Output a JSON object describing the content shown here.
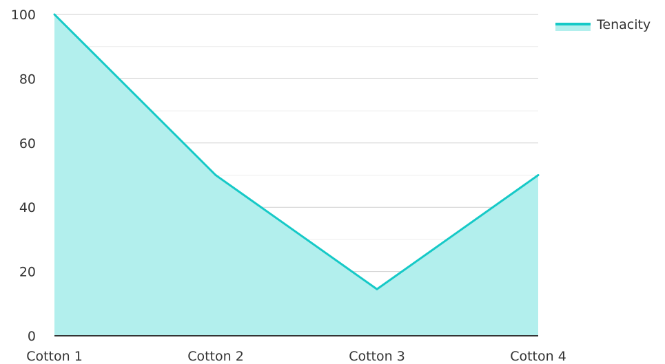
{
  "chart_data": {
    "type": "area",
    "categories": [
      "Cotton 1",
      "Cotton 2",
      "Cotton 3",
      "Cotton 4"
    ],
    "series": [
      {
        "name": "Tenacity",
        "values": [
          100,
          50,
          14.5,
          50
        ],
        "color": "#16c9c7",
        "fill_color": "#b2efed"
      }
    ],
    "title": "",
    "xlabel": "",
    "ylabel": "",
    "ylim": [
      0,
      100
    ],
    "yticks": [
      0,
      20,
      40,
      60,
      80,
      100
    ],
    "grid": true,
    "legend": "top-right"
  }
}
